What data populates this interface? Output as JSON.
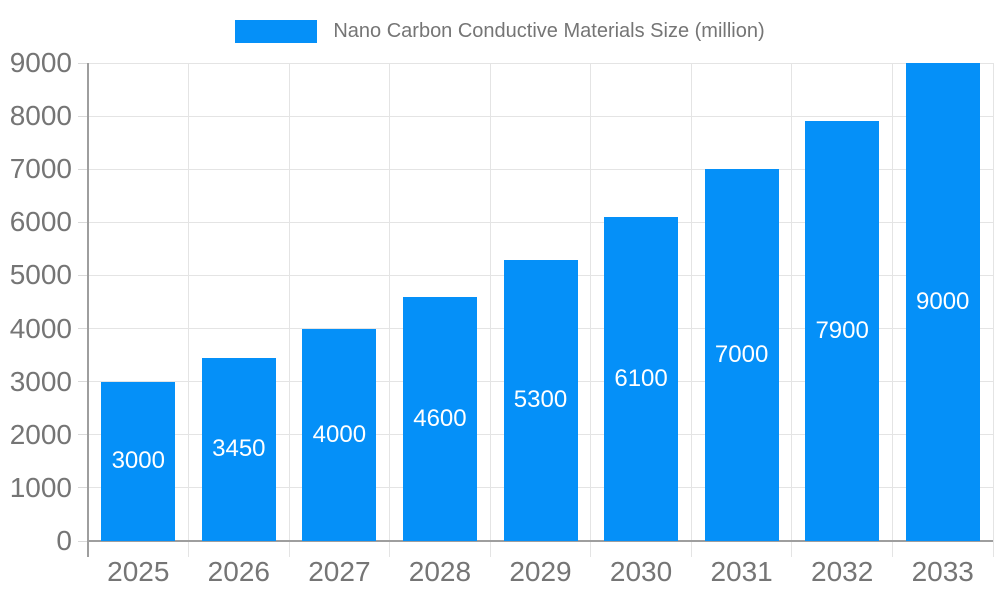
{
  "chart_data": {
    "type": "bar",
    "title": "Nano Carbon Conductive Materials Size (million)",
    "categories": [
      "2025",
      "2026",
      "2027",
      "2028",
      "2029",
      "2030",
      "2031",
      "2032",
      "2033"
    ],
    "values": [
      3000,
      3450,
      4000,
      4600,
      5300,
      6100,
      7000,
      7900,
      9000
    ],
    "bar_labels": [
      "3000",
      "3450",
      "4000",
      "4600",
      "5300",
      "6100",
      "7000",
      "7900",
      "9000"
    ],
    "xlabel": "",
    "ylabel": "",
    "ylim": [
      0,
      9000
    ],
    "ytick_interval": 1000,
    "ytick_labels": [
      "0",
      "1000",
      "2000",
      "3000",
      "4000",
      "5000",
      "6000",
      "7000",
      "8000",
      "9000"
    ],
    "grid": true,
    "legend_position": "top",
    "bar_label_position": "inside-center",
    "colors": {
      "bar": "#0590f8",
      "bar_label": "#ffffff",
      "axis_text": "#757575",
      "legend_text": "#757575",
      "gridline": "#e4e4e4",
      "axis_line": "#9e9e9e",
      "tick": "#d9d9d9",
      "background": "#ffffff"
    }
  },
  "legend": {
    "items": [
      {
        "label": "Nano Carbon Conductive Materials Size (million)",
        "swatch_color": "#0590f8"
      }
    ]
  }
}
